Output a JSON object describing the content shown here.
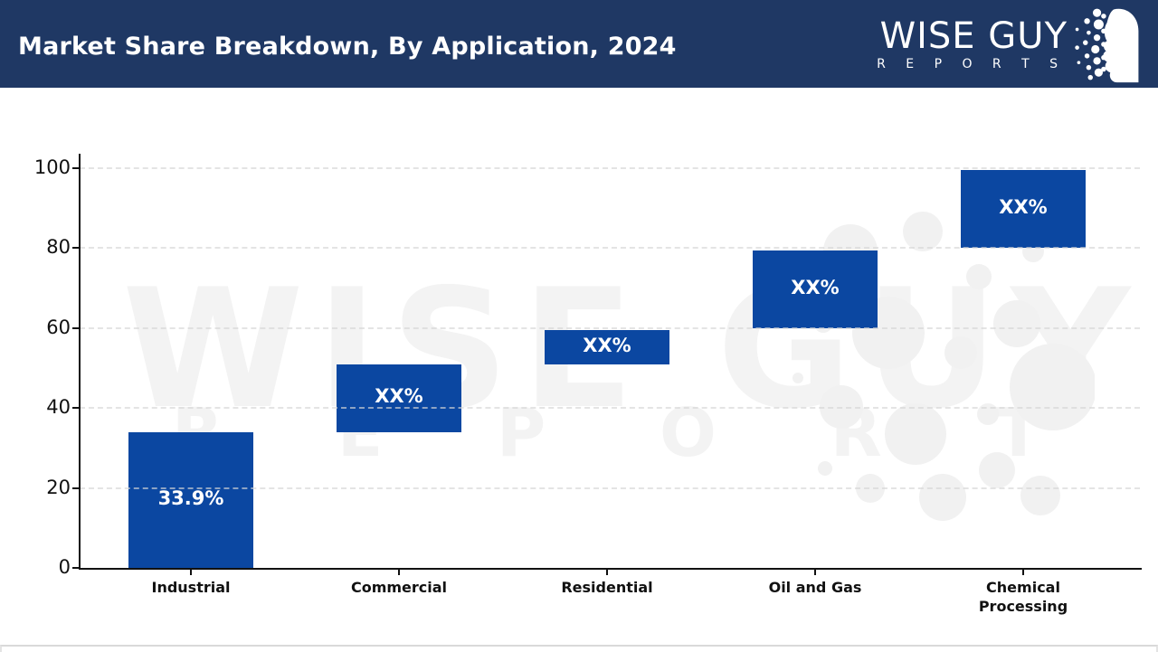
{
  "header": {
    "title": "Market Share Breakdown, By Application, 2024",
    "logo": {
      "line1": "WISE GUY",
      "line2": "R E P O R T S"
    }
  },
  "watermark": {
    "line1": "WISE GUY",
    "line2": "R E P O R T S"
  },
  "colors": {
    "header_bg": "#1f3864",
    "bar": "#0b47a1",
    "bar_label": "#ffffff",
    "axis": "#111111",
    "gridline": "#d6d6d6",
    "watermark": "#f3f3f3"
  },
  "chart_data": {
    "type": "bar",
    "subtype": "waterfall",
    "title": "Market Share Breakdown, By Application, 2024",
    "categories": [
      "Industrial",
      "Commercial",
      "Residential",
      "Oil and Gas",
      "Chemical Processing"
    ],
    "segments": [
      {
        "category": "Industrial",
        "start": 0,
        "end": 34,
        "label": "33.9%"
      },
      {
        "category": "Commercial",
        "start": 34,
        "end": 51,
        "label": "XX%"
      },
      {
        "category": "Residential",
        "start": 51,
        "end": 59.5,
        "label": "XX%"
      },
      {
        "category": "Oil and Gas",
        "start": 60,
        "end": 79.5,
        "label": "XX%"
      },
      {
        "category": "Chemical Processing",
        "start": 80,
        "end": 99.5,
        "label": "XX%"
      }
    ],
    "xlabel": "",
    "ylabel": "",
    "ylim": [
      0,
      100
    ],
    "yticks": [
      0,
      20,
      40,
      60,
      80,
      100
    ],
    "grid": "dashed-horizontal",
    "legend": "none"
  }
}
